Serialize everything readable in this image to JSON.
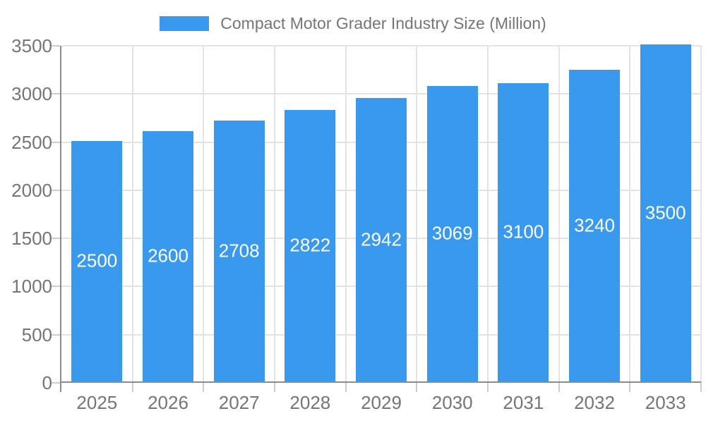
{
  "legend": {
    "label": "Compact Motor Grader Industry Size (Million)"
  },
  "chart_data": {
    "type": "bar",
    "title": "Compact Motor Grader Industry Size (Million)",
    "series_name": "Compact Motor Grader Industry Size (Million)",
    "categories": [
      "2025",
      "2026",
      "2027",
      "2028",
      "2029",
      "2030",
      "2031",
      "2032",
      "2033"
    ],
    "values": [
      2500,
      2600,
      2708,
      2822,
      2942,
      3069,
      3100,
      3240,
      3500
    ],
    "xlabel": "",
    "ylabel": "",
    "ylim": [
      0,
      3500
    ],
    "y_ticks": [
      0,
      500,
      1000,
      1500,
      2000,
      2500,
      3000,
      3500
    ],
    "grid": true,
    "legend_position": "top-center",
    "bar_labels_inside": true,
    "colors": {
      "bar": "#3999ec",
      "bar_label_text": "#ffffff",
      "axis_text": "#757575",
      "legend_text": "#757575",
      "gridline": "#e3e3e3",
      "tick": "#cccccc",
      "axis_line": "#8c8c8c",
      "background": "#ffffff"
    }
  }
}
